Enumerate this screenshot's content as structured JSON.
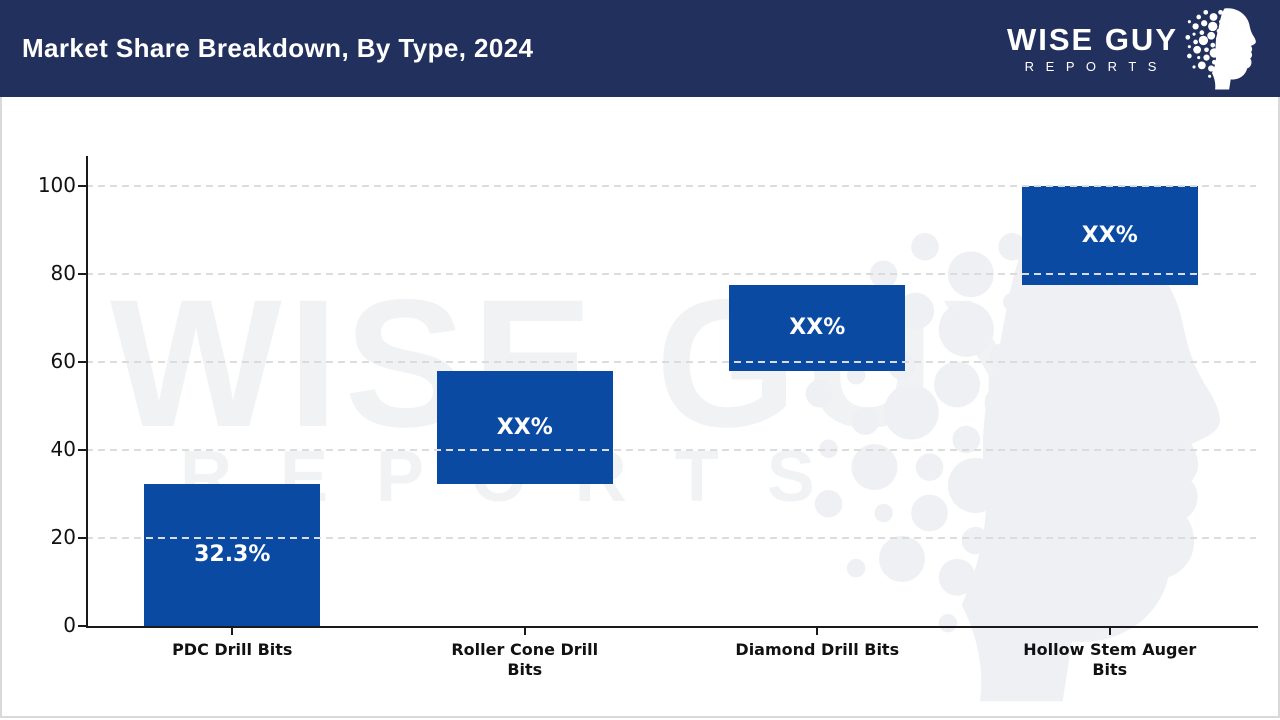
{
  "header": {
    "title": "Market Share Breakdown, By Type, 2024",
    "logo": {
      "line1": "WISE GUY",
      "line2": "R E P O R T S",
      "icon": "head-profile-dots"
    }
  },
  "watermark": {
    "line1": "WISE GUY",
    "line2": "R E P O R T S"
  },
  "colors": {
    "header_bg": "#22305e",
    "bar": "#0b4aa2",
    "bar_label": "#ffffff",
    "grid": "#dcdcdc",
    "axis": "#1a1a1a",
    "tick_text": "#111111",
    "watermark": "#f1f2f4",
    "frame_line": "#d9d9d9"
  },
  "chart_data": {
    "type": "bar",
    "subtype": "waterfall",
    "title": "Market Share Breakdown, By Type, 2024",
    "categories": [
      "PDC Drill Bits",
      "Roller Cone Drill Bits",
      "Diamond Drill Bits",
      "Hollow Stem Auger Bits"
    ],
    "category_lines": [
      [
        "PDC Drill Bits"
      ],
      [
        "Roller Cone Drill",
        "Bits"
      ],
      [
        "Diamond Drill Bits"
      ],
      [
        "Hollow Stem Auger",
        "Bits"
      ]
    ],
    "series": [
      {
        "name": "Market Share (%)",
        "segments": [
          {
            "category": "PDC Drill Bits",
            "start": 0,
            "end": 32.3,
            "label": "32.3%"
          },
          {
            "category": "Roller Cone Drill Bits",
            "start": 32.3,
            "end": 58,
            "label": "XX%"
          },
          {
            "category": "Diamond Drill Bits",
            "start": 58,
            "end": 77.5,
            "label": "XX%"
          },
          {
            "category": "Hollow Stem Auger Bits",
            "start": 77.5,
            "end": 100,
            "label": "XX%"
          }
        ]
      }
    ],
    "ylim": [
      0,
      100
    ],
    "yticks": [
      0,
      20,
      40,
      60,
      80,
      100
    ],
    "grid": "horizontal-dashed",
    "legend": "none",
    "xlabel": "",
    "ylabel": ""
  }
}
